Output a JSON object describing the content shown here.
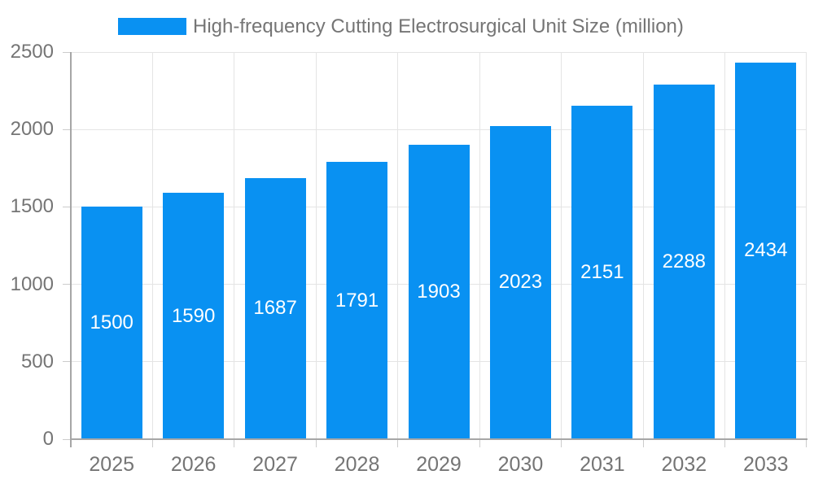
{
  "chart_data": {
    "type": "bar",
    "title": "High-frequency Cutting Electrosurgical Unit Size (million)",
    "legend": {
      "label": "High-frequency Cutting Electrosurgical Unit Size (million)",
      "position": "top"
    },
    "categories": [
      "2025",
      "2026",
      "2027",
      "2028",
      "2029",
      "2030",
      "2031",
      "2032",
      "2033"
    ],
    "values": [
      1500,
      1590,
      1687,
      1791,
      1903,
      2023,
      2151,
      2288,
      2434
    ],
    "xlabel": "",
    "ylabel": "",
    "ylim": [
      0,
      2500
    ],
    "y_ticks": [
      0,
      500,
      1000,
      1500,
      2000,
      2500
    ],
    "grid": true,
    "bar_labels_inside": true,
    "colors": {
      "bar": "#0991f2",
      "grid": "#e4e4e4",
      "axis_line": "#a6a6a6",
      "tick": "#cccccc",
      "axis_text": "#757575",
      "bar_label": "#ffffff"
    }
  }
}
